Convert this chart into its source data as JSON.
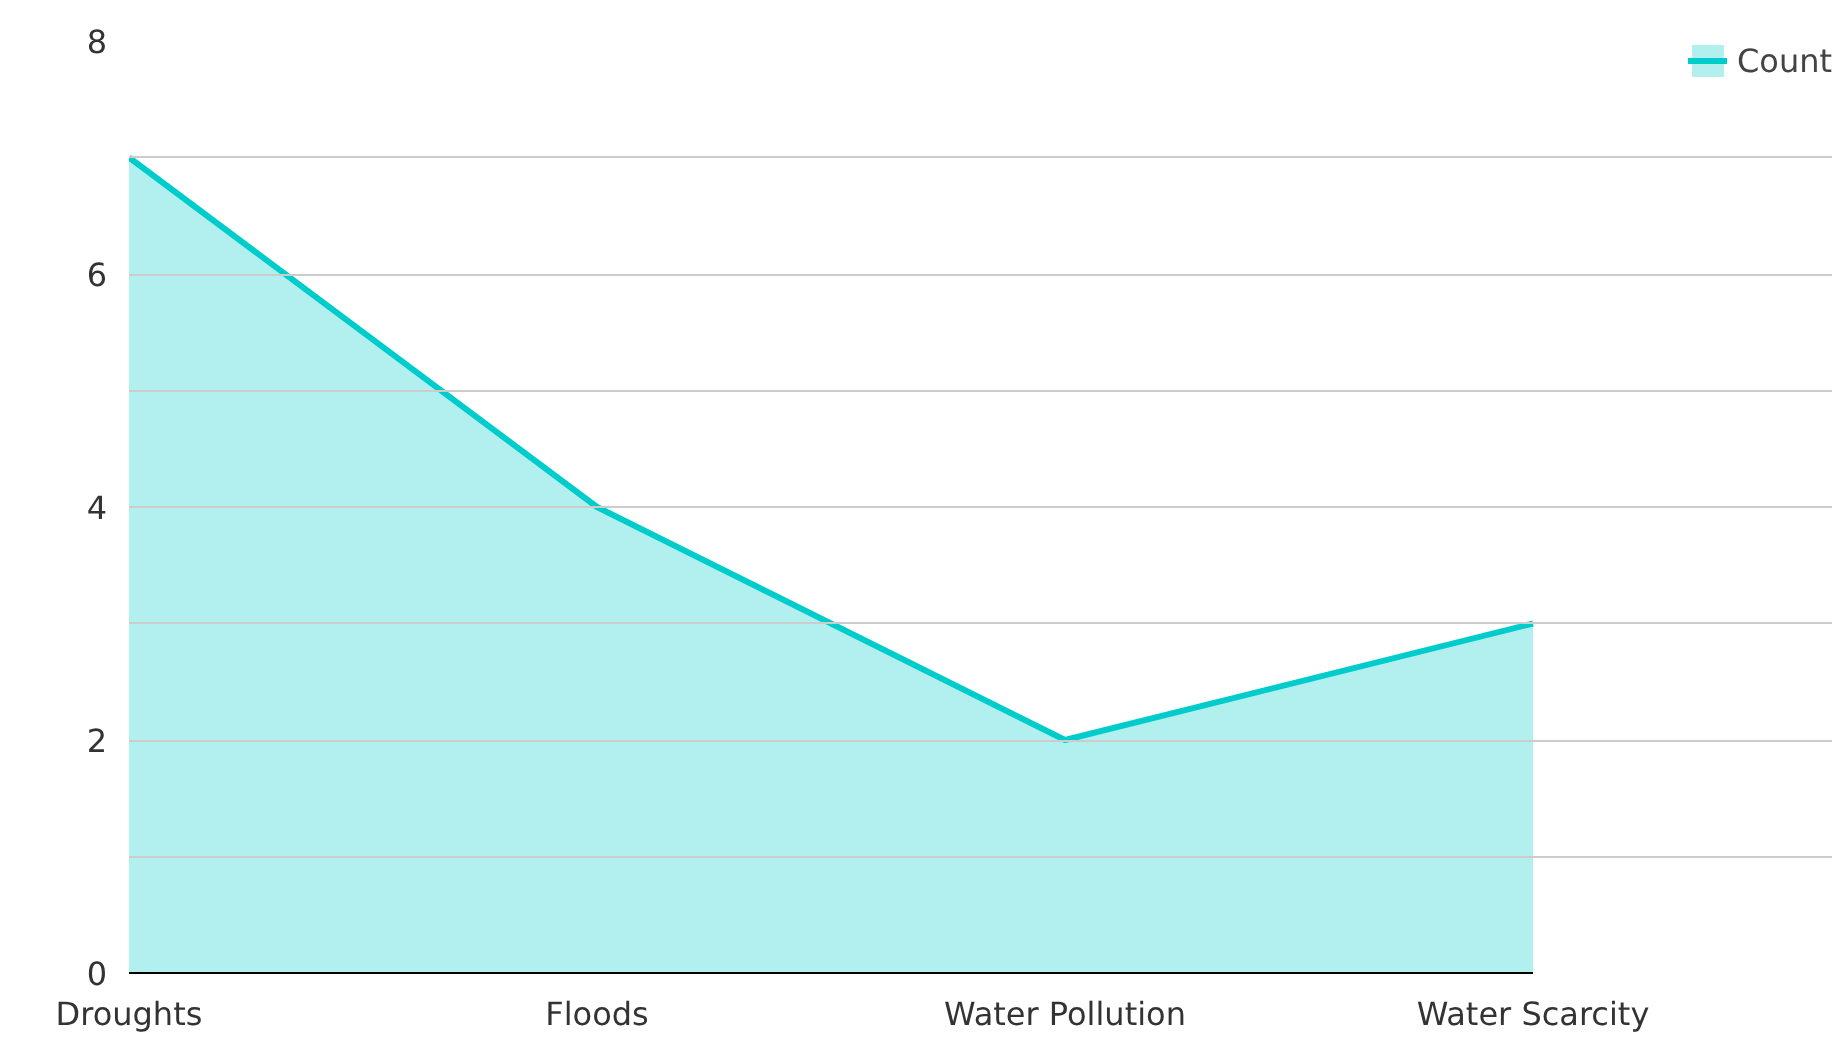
{
  "chart_data": {
    "type": "area",
    "categories": [
      "Droughts",
      "Floods",
      "Water Pollution",
      "Water Scarcity"
    ],
    "series": [
      {
        "name": "Count",
        "color": "#00cccc",
        "values": [
          7,
          4,
          2,
          3
        ]
      }
    ],
    "ylim": [
      0,
      8
    ],
    "yticks": [
      0,
      {
        "value": 1,
        "label": null
      },
      2,
      {
        "value": 3,
        "label": null
      },
      4,
      {
        "value": 5,
        "label": null
      },
      6,
      {
        "value": 7,
        "label": null
      },
      8
    ],
    "grid": "y",
    "legend": "top right"
  }
}
